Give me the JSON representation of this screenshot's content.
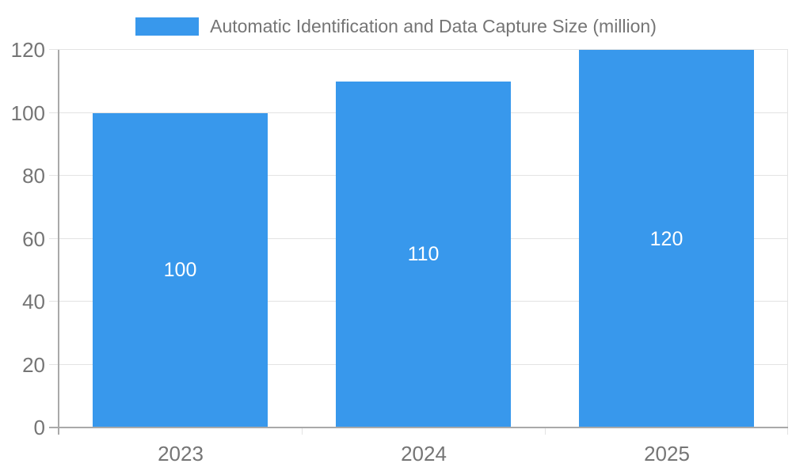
{
  "chart_data": {
    "type": "bar",
    "title": "Automatic Identification and Data Capture Size (million)",
    "legend": {
      "position": "top",
      "label": "Automatic Identification and Data Capture Size (million)"
    },
    "categories": [
      "2023",
      "2024",
      "2025"
    ],
    "series": [
      {
        "name": "Automatic Identification and Data Capture Size (million)",
        "values": [
          100,
          110,
          120
        ]
      }
    ],
    "bar_value_labels": [
      "100",
      "110",
      "120"
    ],
    "xlabel": "",
    "ylabel": "",
    "ylim": [
      0,
      120
    ],
    "yticks": [
      0,
      20,
      40,
      60,
      80,
      100,
      120
    ],
    "grid": true,
    "colors": {
      "bar": "#3898ec",
      "grid": "#e3e3e3",
      "axis": "#a9a9a9",
      "tick_text": "#757575",
      "title_text": "#757575",
      "bar_label_text": "#ffffff",
      "background": "#ffffff"
    }
  }
}
